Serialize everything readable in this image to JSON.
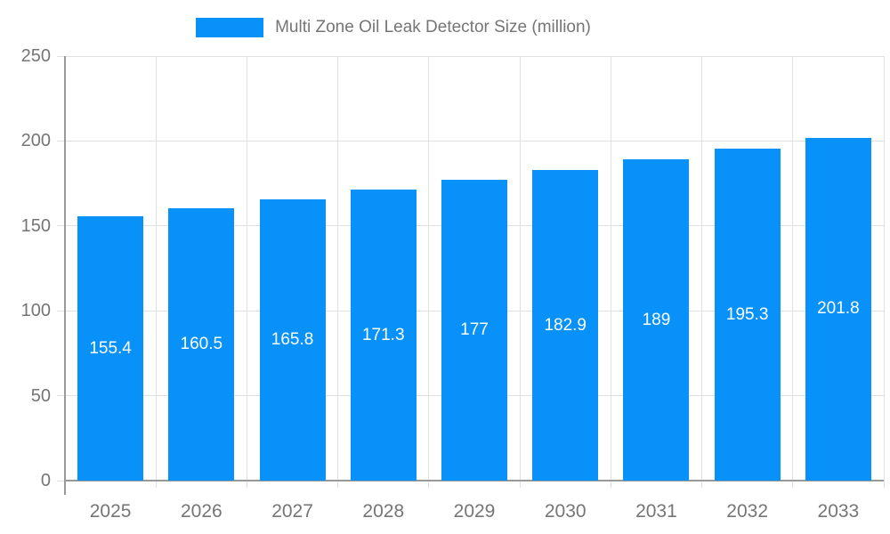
{
  "chart_data": {
    "type": "bar",
    "title": "Multi Zone Oil Leak Detector Size (million)",
    "categories": [
      "2025",
      "2026",
      "2027",
      "2028",
      "2029",
      "2030",
      "2031",
      "2032",
      "2033"
    ],
    "values": [
      155.4,
      160.5,
      165.8,
      171.3,
      177,
      182.9,
      189,
      195.3,
      201.8
    ],
    "series": [
      {
        "name": "Multi Zone Oil Leak Detector Size (million)",
        "values": [
          155.4,
          160.5,
          165.8,
          171.3,
          177,
          182.9,
          189,
          195.3,
          201.8
        ]
      }
    ],
    "xlabel": "",
    "ylabel": "",
    "ylim": [
      0,
      250
    ],
    "yticks": [
      0,
      50,
      100,
      150,
      200,
      250
    ],
    "grid": true,
    "legend_position": "top-center",
    "bar_labels_inside": true,
    "bar_color": "#0892f9",
    "label_color": "#ffffff",
    "axis_text_color": "#757575",
    "gridline_color": "#e0e0e0",
    "axis_line_color": "#999999",
    "background": "#ffffff"
  }
}
